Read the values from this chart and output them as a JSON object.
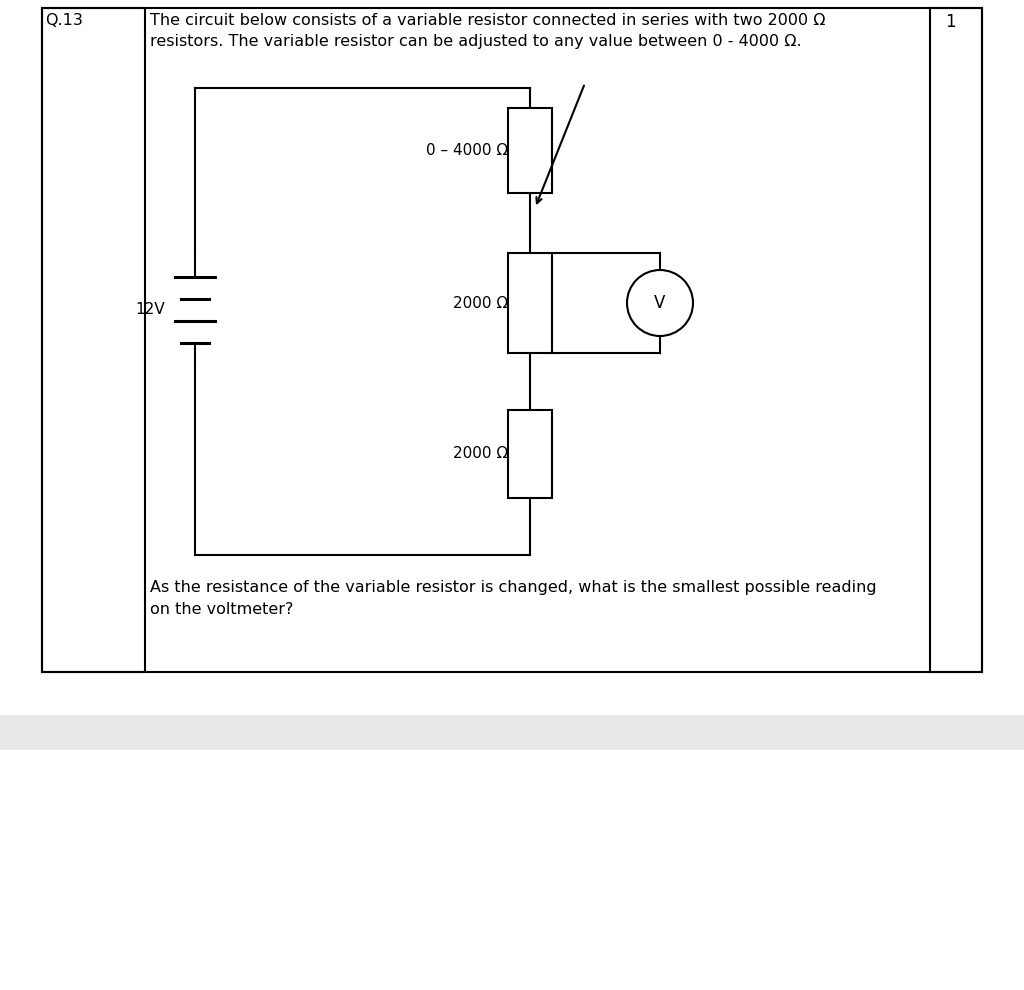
{
  "title_text": "Q.13",
  "question_text_line1": "The circuit below consists of a variable resistor connected in series with two 2000 Ω",
  "question_text_line2": "resistors. The variable resistor can be adjusted to any value between 0 - 4000 Ω.",
  "footer_text_line1": "As the resistance of the variable resistor is changed, what is the smallest possible reading",
  "footer_text_line2": "on the voltmeter?",
  "mark": "1",
  "battery_label": "12V",
  "var_resistor_label": "0 – 4000 Ω",
  "resistor1_label": "2000 Ω",
  "resistor2_label": "2000 Ω",
  "voltmeter_label": "V",
  "bg_color": "#ffffff",
  "gray_bar_color": "#e8e8e8",
  "line_color": "#000000",
  "font_size_question": 11.5,
  "font_size_labels": 11,
  "font_size_mark": 12
}
